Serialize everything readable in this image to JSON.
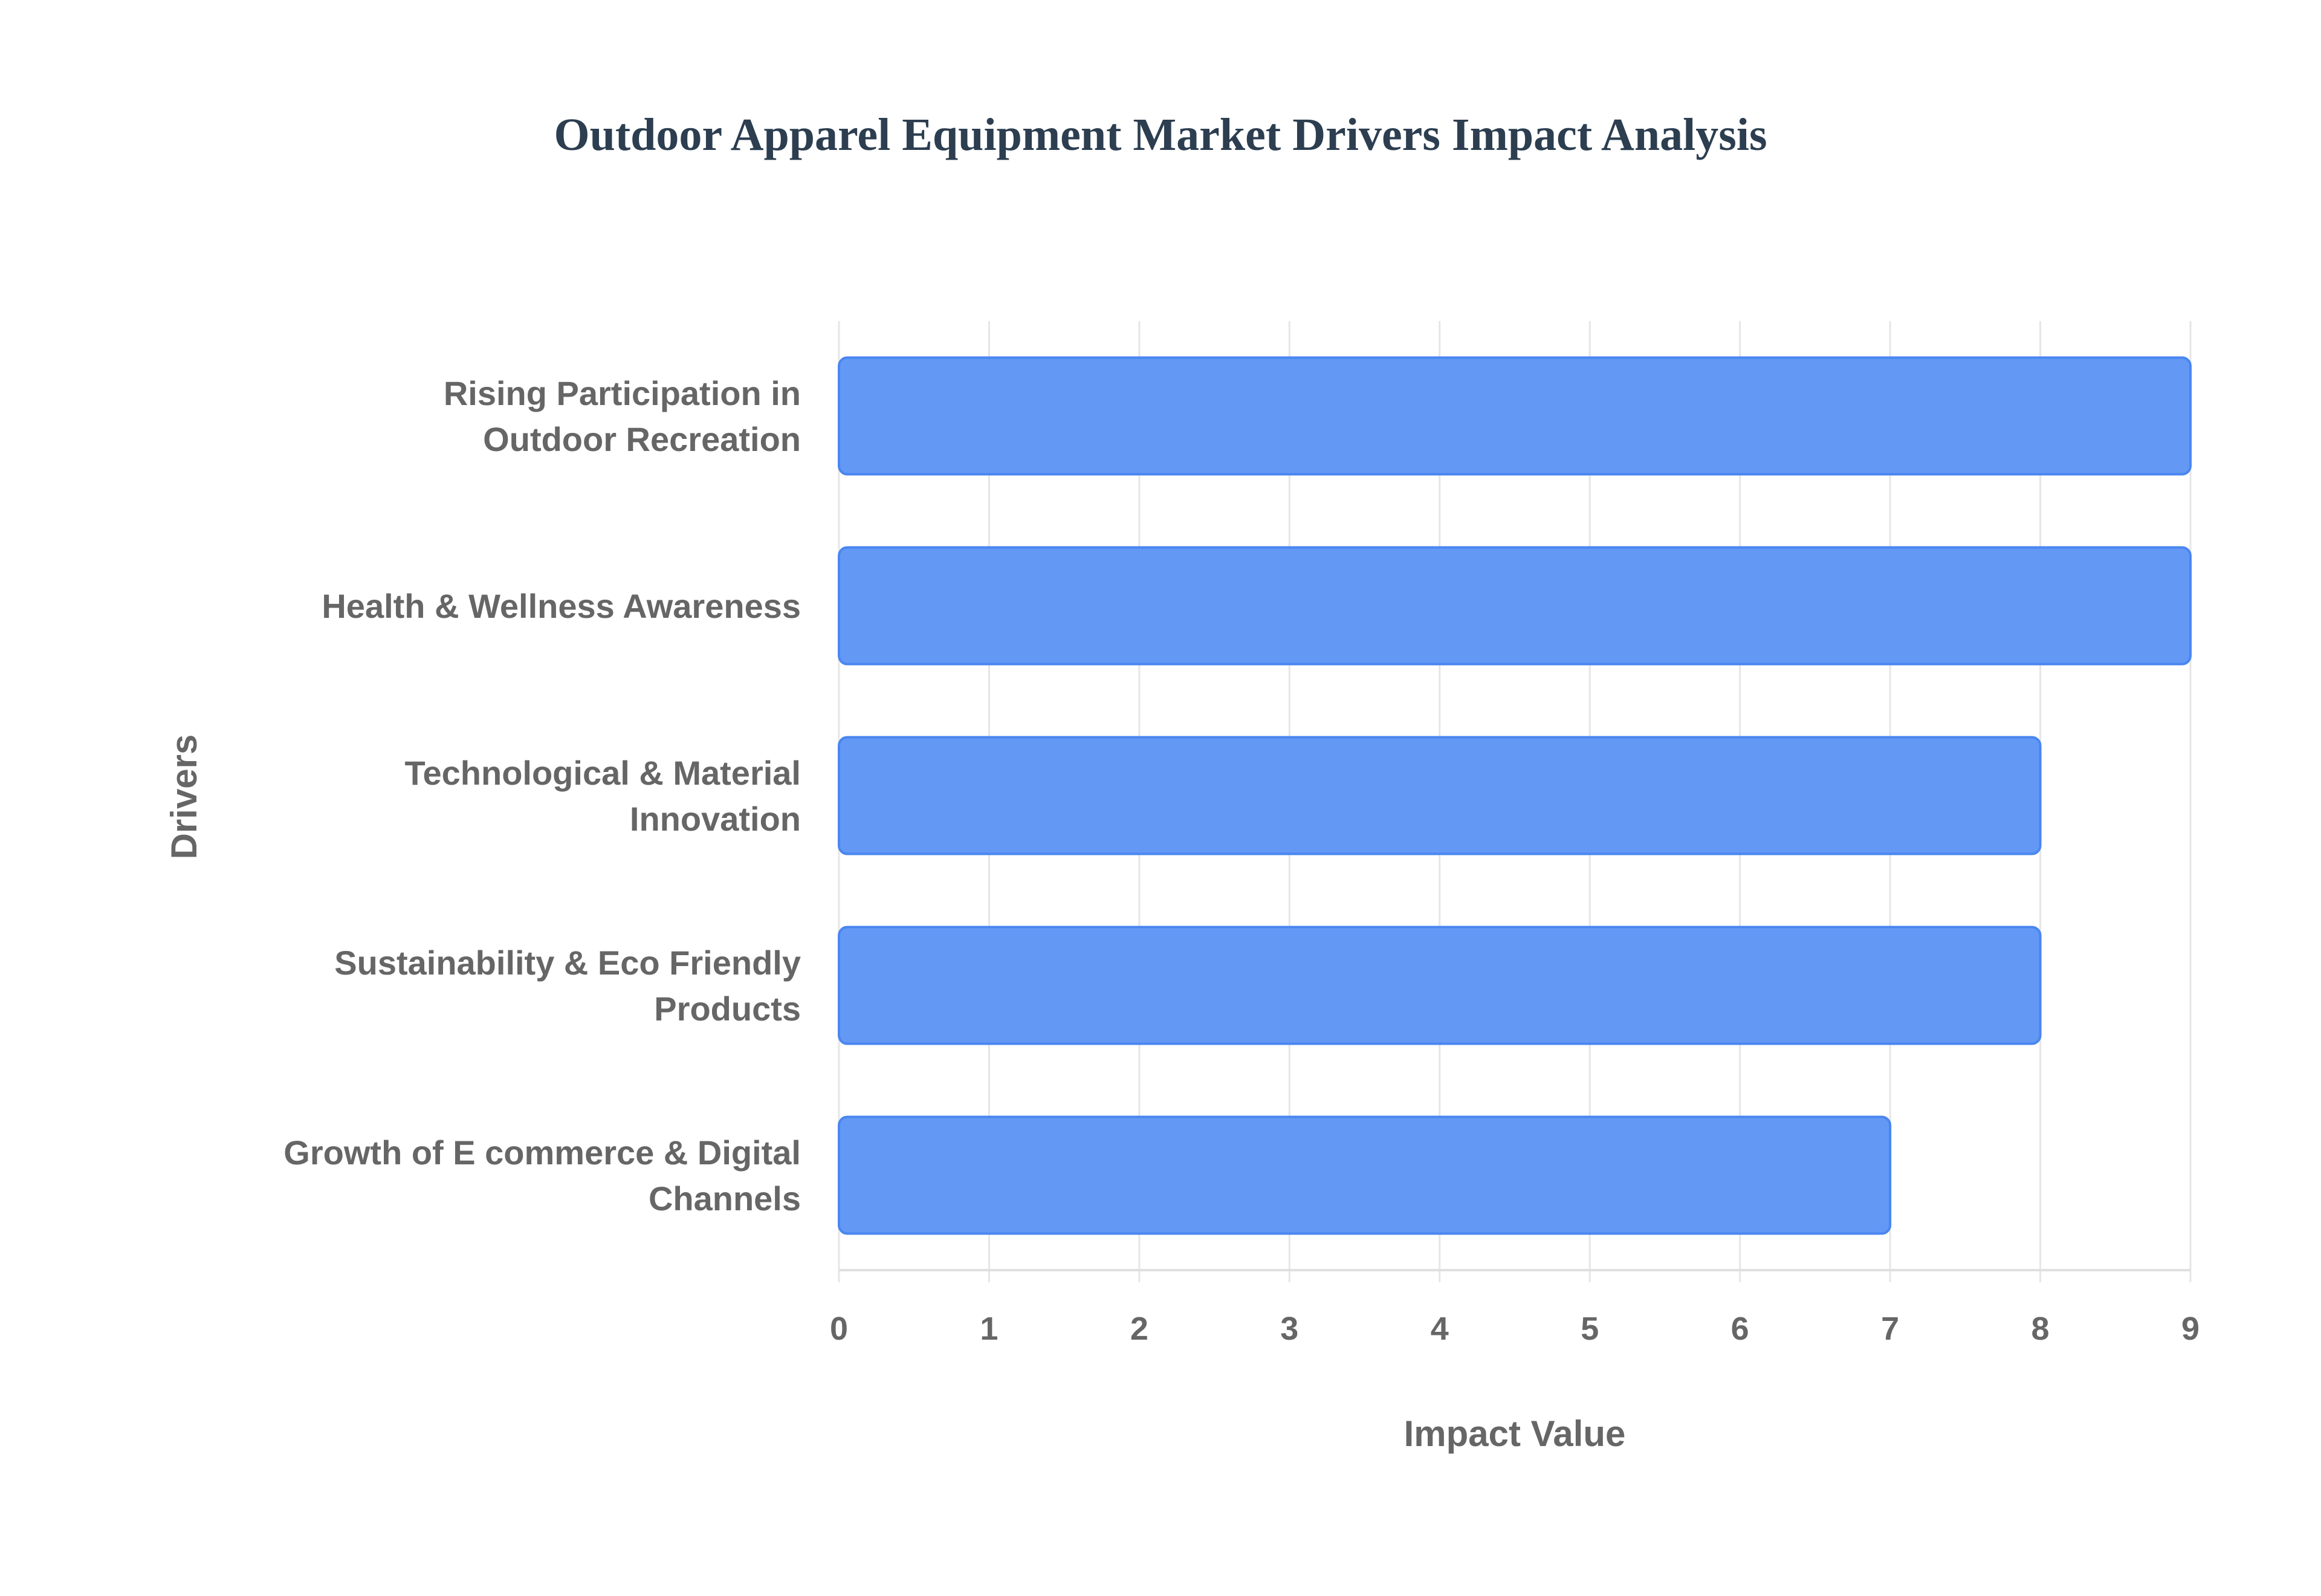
{
  "chart_data": {
    "type": "bar",
    "orientation": "horizontal",
    "title": "Outdoor Apparel Equipment Market Drivers Impact Analysis",
    "xlabel": "Impact Value",
    "ylabel": "Drivers",
    "categories": [
      [
        "Rising Participation in",
        "Outdoor Recreation"
      ],
      [
        "Health & Wellness Awareness"
      ],
      [
        "Technological & Material",
        "Innovation"
      ],
      [
        "Sustainability & Eco Friendly",
        "Products"
      ],
      [
        "Growth of E commerce & Digital",
        "Channels"
      ]
    ],
    "values": [
      9,
      9,
      8,
      8,
      7
    ],
    "xlim": [
      0,
      9
    ],
    "xticks": [
      "0",
      "1",
      "2",
      "3",
      "4",
      "5",
      "6",
      "7",
      "8",
      "9"
    ],
    "grid": true,
    "legend": "none",
    "colors": {
      "bar_fill": "#6399f5",
      "bar_border": "#4a86f0",
      "grid": "#e6e6e6",
      "title": "#2c3e50",
      "text": "#666666"
    }
  }
}
